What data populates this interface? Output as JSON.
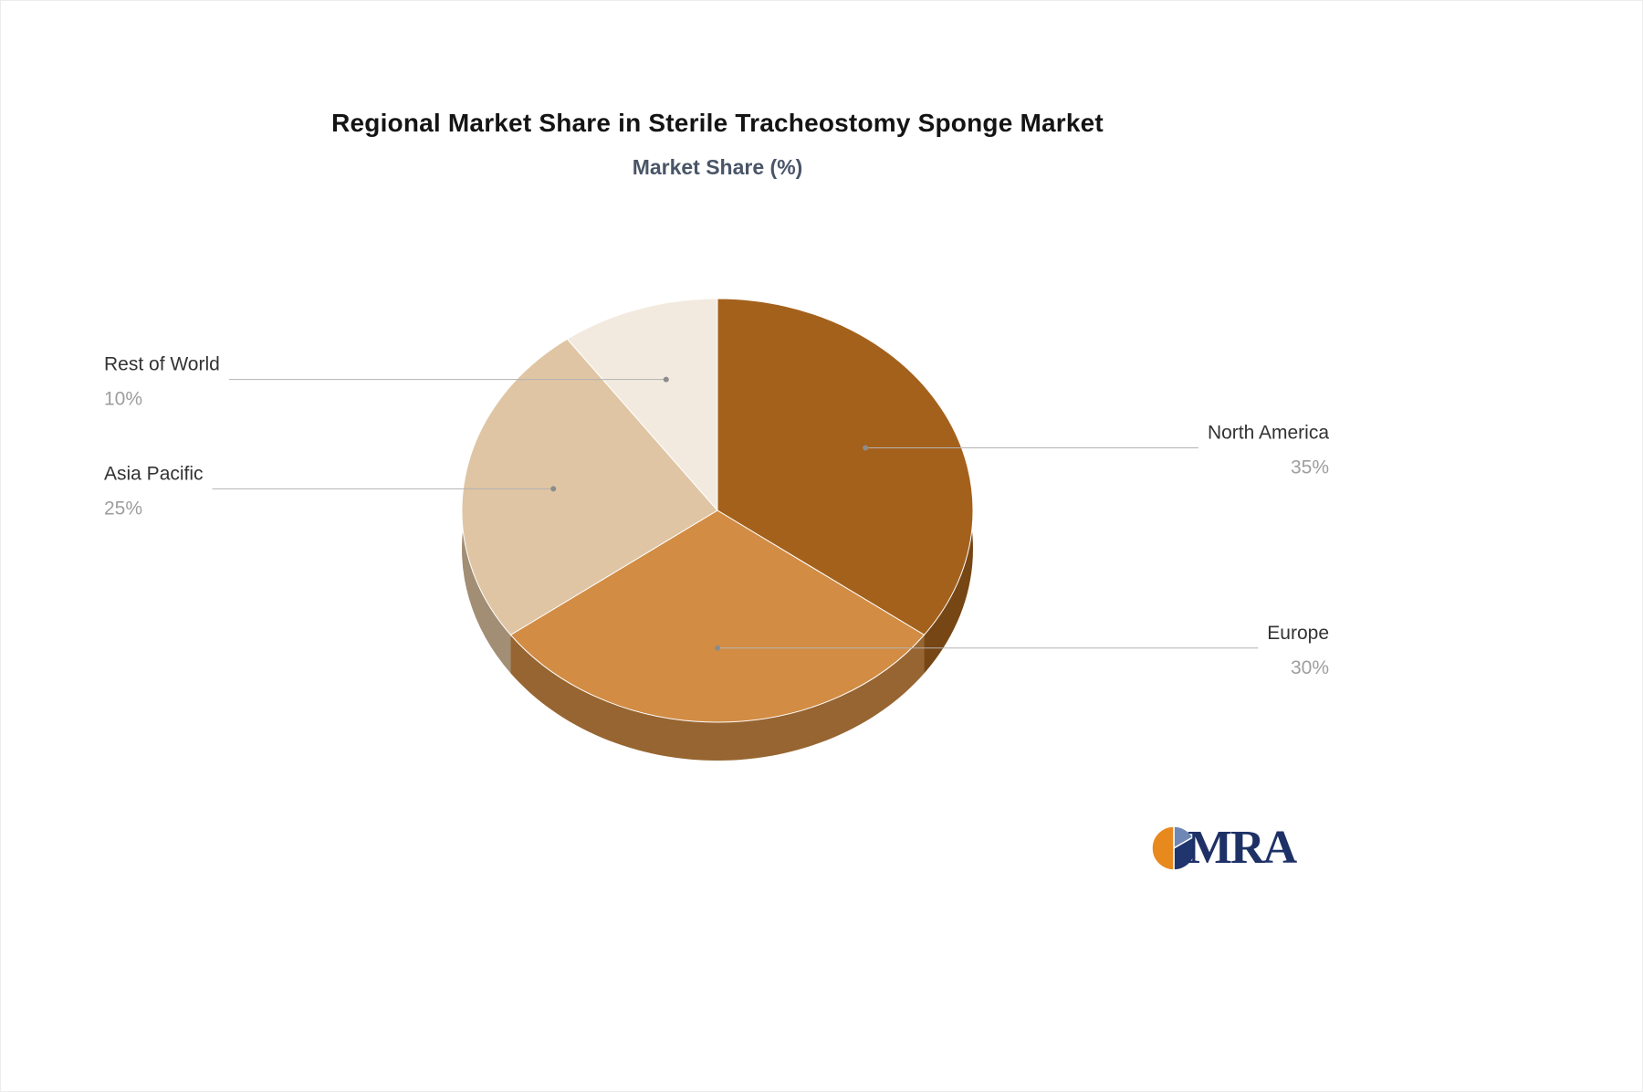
{
  "chart_data": {
    "type": "pie",
    "title": "Regional Market Share in Sterile Tracheostomy Sponge Market",
    "subtitle": "Market Share (%)",
    "unit": "%",
    "effect": "3d",
    "direction": "clockwise",
    "start_angle_deg": 0,
    "legend": "off",
    "slices": [
      {
        "label": "North America",
        "value": 35,
        "color": "#A4611C"
      },
      {
        "label": "Europe",
        "value": 30,
        "color": "#D28C44"
      },
      {
        "label": "Asia Pacific",
        "value": 25,
        "color": "#DFC5A3"
      },
      {
        "label": "Rest of World",
        "value": 10,
        "color": "#F3EADF"
      }
    ],
    "label_name_color": "#333333",
    "label_value_color": "#9e9e9e",
    "leader_line_color": "#b3b3b3"
  },
  "logo": {
    "text": "MRA",
    "text_color": "#1e3166",
    "icon_colors": [
      "#6f87b5",
      "#20356e",
      "#e8891e"
    ]
  }
}
